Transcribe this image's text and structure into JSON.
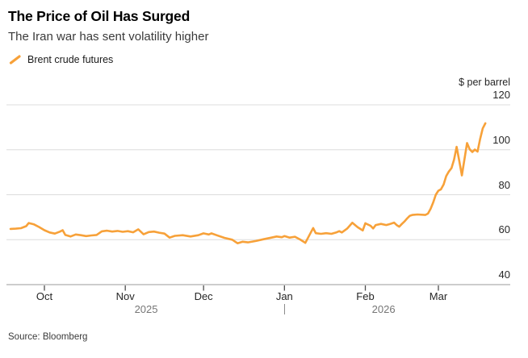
{
  "header": {
    "title": "The Price of Oil Has Surged",
    "subtitle": "The Iran war has sent volatility higher"
  },
  "legend": {
    "items": [
      {
        "label": "Brent crude futures",
        "swatch": "diagonal-line-icon",
        "color": "#F7A139"
      }
    ]
  },
  "footer": {
    "source": "Source: Bloomberg"
  },
  "colors": {
    "accent": "#F7A139",
    "gridline": "#DCDCDC",
    "axis": "#9B9B9B",
    "tick": "#4D4D4D",
    "label": "#262626",
    "muted": "#767676"
  },
  "chart_data": {
    "type": "line",
    "title": "The Price of Oil Has Surged",
    "subtitle": "The Iran war has sent volatility higher",
    "xlabel": "",
    "ylabel": "$ per barrel",
    "ylim": [
      40,
      120
    ],
    "y_ticks": [
      40,
      60,
      80,
      100,
      120
    ],
    "grid": "horizontal",
    "legend_position": "top-left",
    "x_ticks": [
      {
        "label": "Oct",
        "date": "2025-10-01"
      },
      {
        "label": "Nov",
        "date": "2025-11-01"
      },
      {
        "label": "Dec",
        "date": "2025-12-01"
      },
      {
        "label": "Jan",
        "date": "2026-01-01"
      },
      {
        "label": "Feb",
        "date": "2026-02-01"
      },
      {
        "label": "Mar",
        "date": "2026-03-01"
      }
    ],
    "year_labels": [
      {
        "label": "2025",
        "center_date": "2025-11-09"
      },
      {
        "label": "2026",
        "center_date": "2026-02-08"
      }
    ],
    "year_divider_date": "2026-01-01",
    "series": [
      {
        "name": "Brent crude futures",
        "color": "#F7A139",
        "points": [
          [
            "2025-09-18",
            64.8
          ],
          [
            "2025-09-20",
            64.9
          ],
          [
            "2025-09-22",
            65.1
          ],
          [
            "2025-09-24",
            66.0
          ],
          [
            "2025-09-25",
            67.4
          ],
          [
            "2025-09-27",
            66.8
          ],
          [
            "2025-09-29",
            65.6
          ],
          [
            "2025-10-01",
            64.2
          ],
          [
            "2025-10-03",
            63.2
          ],
          [
            "2025-10-05",
            62.7
          ],
          [
            "2025-10-07",
            63.6
          ],
          [
            "2025-10-08",
            64.2
          ],
          [
            "2025-10-09",
            62.1
          ],
          [
            "2025-10-11",
            61.4
          ],
          [
            "2025-10-13",
            62.3
          ],
          [
            "2025-10-15",
            62.0
          ],
          [
            "2025-10-17",
            61.6
          ],
          [
            "2025-10-19",
            61.9
          ],
          [
            "2025-10-21",
            62.1
          ],
          [
            "2025-10-23",
            63.7
          ],
          [
            "2025-10-25",
            64.0
          ],
          [
            "2025-10-27",
            63.6
          ],
          [
            "2025-10-29",
            63.9
          ],
          [
            "2025-10-31",
            63.5
          ],
          [
            "2025-11-02",
            63.8
          ],
          [
            "2025-11-04",
            63.3
          ],
          [
            "2025-11-06",
            64.6
          ],
          [
            "2025-11-08",
            62.4
          ],
          [
            "2025-11-10",
            63.4
          ],
          [
            "2025-11-12",
            63.6
          ],
          [
            "2025-11-14",
            63.1
          ],
          [
            "2025-11-16",
            62.7
          ],
          [
            "2025-11-18",
            60.9
          ],
          [
            "2025-11-20",
            61.7
          ],
          [
            "2025-11-23",
            62.0
          ],
          [
            "2025-11-26",
            61.4
          ],
          [
            "2025-11-29",
            62.0
          ],
          [
            "2025-12-01",
            62.8
          ],
          [
            "2025-12-03",
            62.3
          ],
          [
            "2025-12-04",
            62.8
          ],
          [
            "2025-12-06",
            62.0
          ],
          [
            "2025-12-09",
            60.8
          ],
          [
            "2025-12-12",
            60.0
          ],
          [
            "2025-12-14",
            58.4
          ],
          [
            "2025-12-16",
            59.1
          ],
          [
            "2025-12-18",
            58.8
          ],
          [
            "2025-12-21",
            59.4
          ],
          [
            "2025-12-24",
            60.2
          ],
          [
            "2025-12-27",
            60.9
          ],
          [
            "2025-12-29",
            61.4
          ],
          [
            "2025-12-31",
            61.1
          ],
          [
            "2026-01-01",
            61.6
          ],
          [
            "2026-01-03",
            60.9
          ],
          [
            "2026-01-05",
            61.3
          ],
          [
            "2026-01-07",
            60.1
          ],
          [
            "2026-01-09",
            58.6
          ],
          [
            "2026-01-12",
            65.2
          ],
          [
            "2026-01-13",
            62.9
          ],
          [
            "2026-01-15",
            62.6
          ],
          [
            "2026-01-17",
            62.9
          ],
          [
            "2026-01-19",
            62.6
          ],
          [
            "2026-01-21",
            63.3
          ],
          [
            "2026-01-22",
            63.8
          ],
          [
            "2026-01-23",
            63.2
          ],
          [
            "2026-01-25",
            64.9
          ],
          [
            "2026-01-27",
            67.5
          ],
          [
            "2026-01-29",
            65.6
          ],
          [
            "2026-01-31",
            64.1
          ],
          [
            "2026-02-01",
            67.3
          ],
          [
            "2026-02-03",
            66.2
          ],
          [
            "2026-02-04",
            65.0
          ],
          [
            "2026-02-05",
            66.5
          ],
          [
            "2026-02-07",
            67.0
          ],
          [
            "2026-02-09",
            66.5
          ],
          [
            "2026-02-10",
            66.8
          ],
          [
            "2026-02-12",
            67.6
          ],
          [
            "2026-02-13",
            66.5
          ],
          [
            "2026-02-14",
            65.8
          ],
          [
            "2026-02-15",
            67.0
          ],
          [
            "2026-02-16",
            68.1
          ],
          [
            "2026-02-17",
            69.4
          ],
          [
            "2026-02-18",
            70.6
          ],
          [
            "2026-02-19",
            71.0
          ],
          [
            "2026-02-21",
            71.2
          ],
          [
            "2026-02-24",
            71.0
          ],
          [
            "2026-02-25",
            71.6
          ],
          [
            "2026-02-26",
            73.7
          ],
          [
            "2026-02-27",
            76.5
          ],
          [
            "2026-02-28",
            80.0
          ],
          [
            "2026-03-01",
            81.8
          ],
          [
            "2026-03-02",
            82.4
          ],
          [
            "2026-03-03",
            84.6
          ],
          [
            "2026-03-04",
            88.3
          ],
          [
            "2026-03-05",
            90.3
          ],
          [
            "2026-03-06",
            91.8
          ],
          [
            "2026-03-07",
            95.6
          ],
          [
            "2026-03-08",
            101.3
          ],
          [
            "2026-03-09",
            95.0
          ],
          [
            "2026-03-10",
            88.6
          ],
          [
            "2026-03-11",
            95.8
          ],
          [
            "2026-03-12",
            103.0
          ],
          [
            "2026-03-13",
            100.2
          ],
          [
            "2026-03-14",
            99.0
          ],
          [
            "2026-03-15",
            100.1
          ],
          [
            "2026-03-16",
            99.2
          ],
          [
            "2026-03-17",
            104.8
          ],
          [
            "2026-03-18",
            109.5
          ],
          [
            "2026-03-19",
            111.8
          ]
        ]
      }
    ]
  }
}
